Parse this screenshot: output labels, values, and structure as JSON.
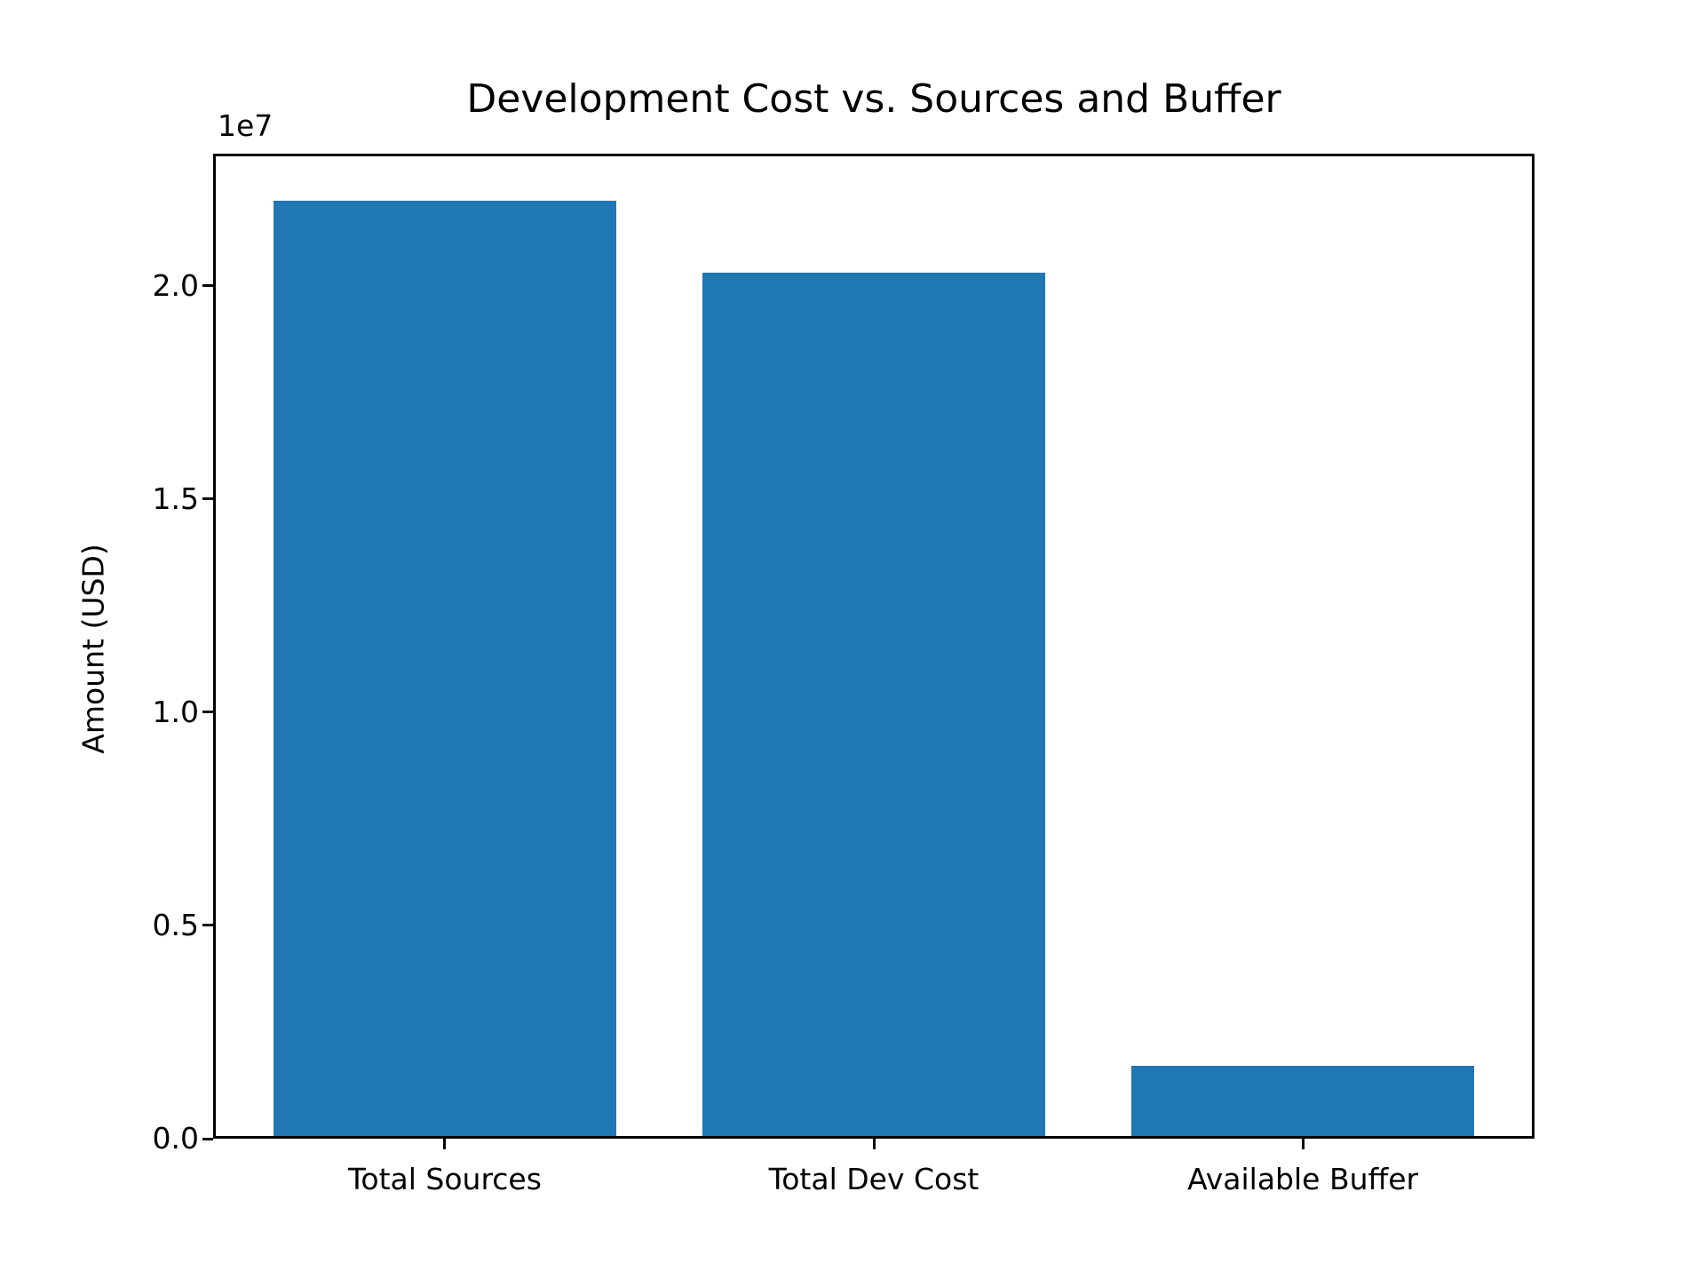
{
  "chart_data": {
    "type": "bar",
    "title": "Development Cost vs. Sources and Buffer",
    "xlabel": "",
    "ylabel": "Amount (USD)",
    "offset_text": "1e7",
    "categories": [
      "Total Sources",
      "Total Dev Cost",
      "Available Buffer"
    ],
    "values": [
      22000000,
      20300000,
      1700000
    ],
    "bar_color": "#1f77b4",
    "bar_width_fraction": 0.8,
    "xlim": [
      -0.54,
      2.54
    ],
    "ylim": [
      0,
      23100000
    ],
    "yticks": [
      0,
      5000000,
      10000000,
      15000000,
      20000000
    ],
    "ytick_labels": [
      "0.0",
      "0.5",
      "1.0",
      "1.5",
      "2.0"
    ],
    "grid": false,
    "legend": null,
    "spine_color": "#000000",
    "text_color": "#000000"
  }
}
